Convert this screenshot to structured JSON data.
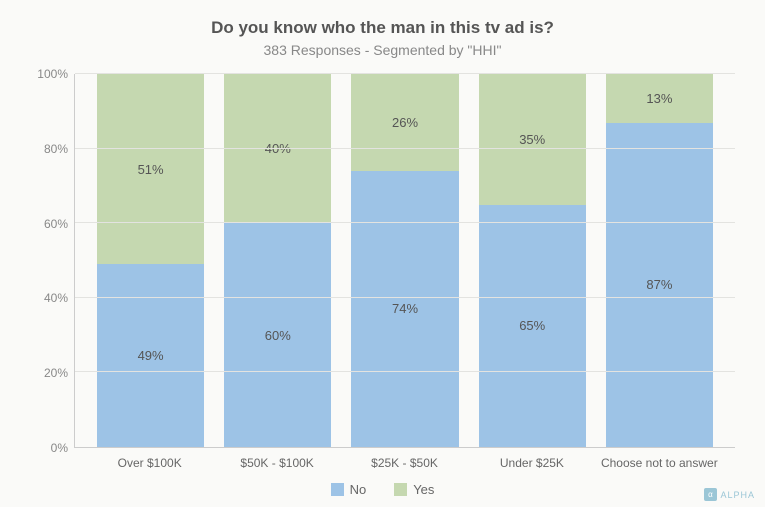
{
  "title": "Do you know who the man in this tv ad is?",
  "subtitle": "383 Responses - Segmented by \"HHI\"",
  "chart": {
    "type": "stacked-bar-100",
    "background_color": "#fafaf8",
    "grid_color": "#e3e3e0",
    "axis_color": "#cccccc",
    "text_color": "#666666",
    "title_color": "#555555",
    "title_fontsize": 17,
    "subtitle_fontsize": 14,
    "label_fontsize": 12,
    "value_fontsize": 13,
    "y": {
      "min": 0,
      "max": 100,
      "step": 20,
      "suffix": "%",
      "ticks": [
        0,
        20,
        40,
        60,
        80,
        100
      ]
    },
    "series": [
      {
        "key": "no",
        "label": "No",
        "color": "#9dc3e6"
      },
      {
        "key": "yes",
        "label": "Yes",
        "color": "#c5d8b0"
      }
    ],
    "categories": [
      {
        "label": "Over $100K",
        "no": 49,
        "yes": 51
      },
      {
        "label": "$50K - $100K",
        "no": 60,
        "yes": 40
      },
      {
        "label": "$25K - $50K",
        "no": 74,
        "yes": 26
      },
      {
        "label": "Under $25K",
        "no": 65,
        "yes": 35
      },
      {
        "label": "Choose not to answer",
        "no": 87,
        "yes": 13
      }
    ],
    "bar_width_ratio": 0.78
  },
  "watermark": {
    "icon_text": "α",
    "text": "ALPHA"
  }
}
